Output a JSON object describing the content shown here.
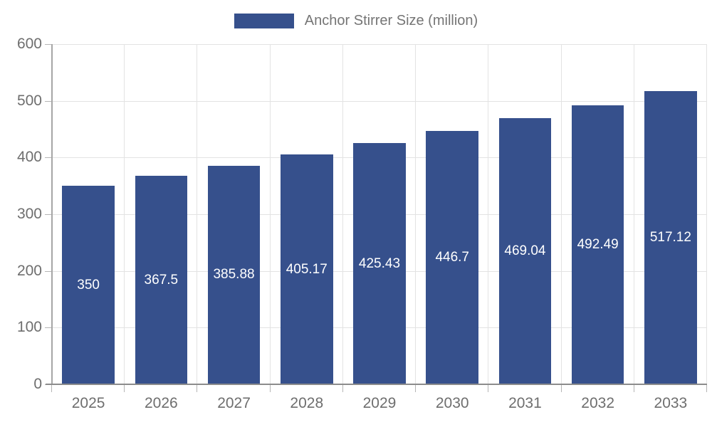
{
  "chart_data": {
    "type": "bar",
    "title": "Anchor Stirrer Size (million)",
    "legend": [
      "Anchor Stirrer Size (million)"
    ],
    "legend_position": "top-center",
    "categories": [
      "2025",
      "2026",
      "2027",
      "2028",
      "2029",
      "2030",
      "2031",
      "2032",
      "2033"
    ],
    "values": [
      350,
      367.5,
      385.88,
      405.17,
      425.43,
      446.7,
      469.04,
      492.49,
      517.12
    ],
    "value_labels": [
      "350",
      "367.5",
      "385.88",
      "405.17",
      "425.43",
      "446.7",
      "469.04",
      "492.49",
      "517.12"
    ],
    "xlabel": "",
    "ylabel": "",
    "ylim": [
      0,
      600
    ],
    "yticks": [
      0,
      100,
      200,
      300,
      400,
      500,
      600
    ],
    "grid": true,
    "value_label_position": "inside-center"
  },
  "colors": {
    "bar": "#36508c",
    "bar_label": "#ffffff",
    "legend_text": "#757575",
    "axis_label": "#6e6e6e",
    "gridline": "#e3e3e3",
    "axis_line_y": "#a6a6a6",
    "axis_line_x": "#8c8c8c",
    "tick": "#b5b5b5",
    "background": "#ffffff"
  }
}
